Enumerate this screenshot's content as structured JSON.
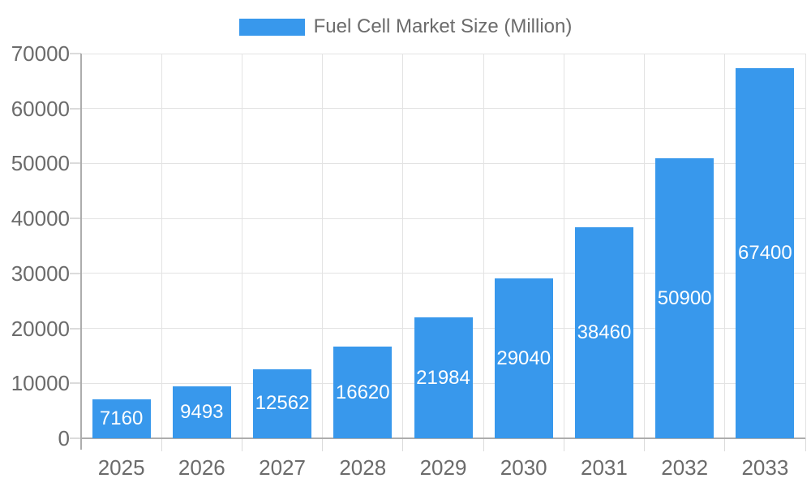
{
  "chart_data": {
    "type": "bar",
    "title": "Fuel Cell Market Size (Million)",
    "legend_position": "top",
    "categories": [
      "2025",
      "2026",
      "2027",
      "2028",
      "2029",
      "2030",
      "2031",
      "2032",
      "2033"
    ],
    "series": [
      {
        "name": "Fuel Cell Market Size (Million)",
        "values": [
          7160,
          9493,
          12562,
          16620,
          21984,
          29040,
          38460,
          50900,
          67400
        ]
      }
    ],
    "bar_value_labels": [
      "7160",
      "9493",
      "12562",
      "16620",
      "21984",
      "29040",
      "38460",
      "50900",
      "67400"
    ],
    "xlabel": "",
    "ylabel": "",
    "ylim": [
      0,
      70000
    ],
    "yticks": [
      0,
      10000,
      20000,
      30000,
      40000,
      50000,
      60000,
      70000
    ],
    "grid": true,
    "colors": {
      "bar": "#3898EC",
      "bar_label": "#FFFFFF",
      "axis_label": "#6B6B6B",
      "grid_line": "#E3E3E3",
      "tick_line": "#DBDBDB",
      "axis_line": "#ADADAD",
      "background": "#FFFFFF"
    }
  }
}
